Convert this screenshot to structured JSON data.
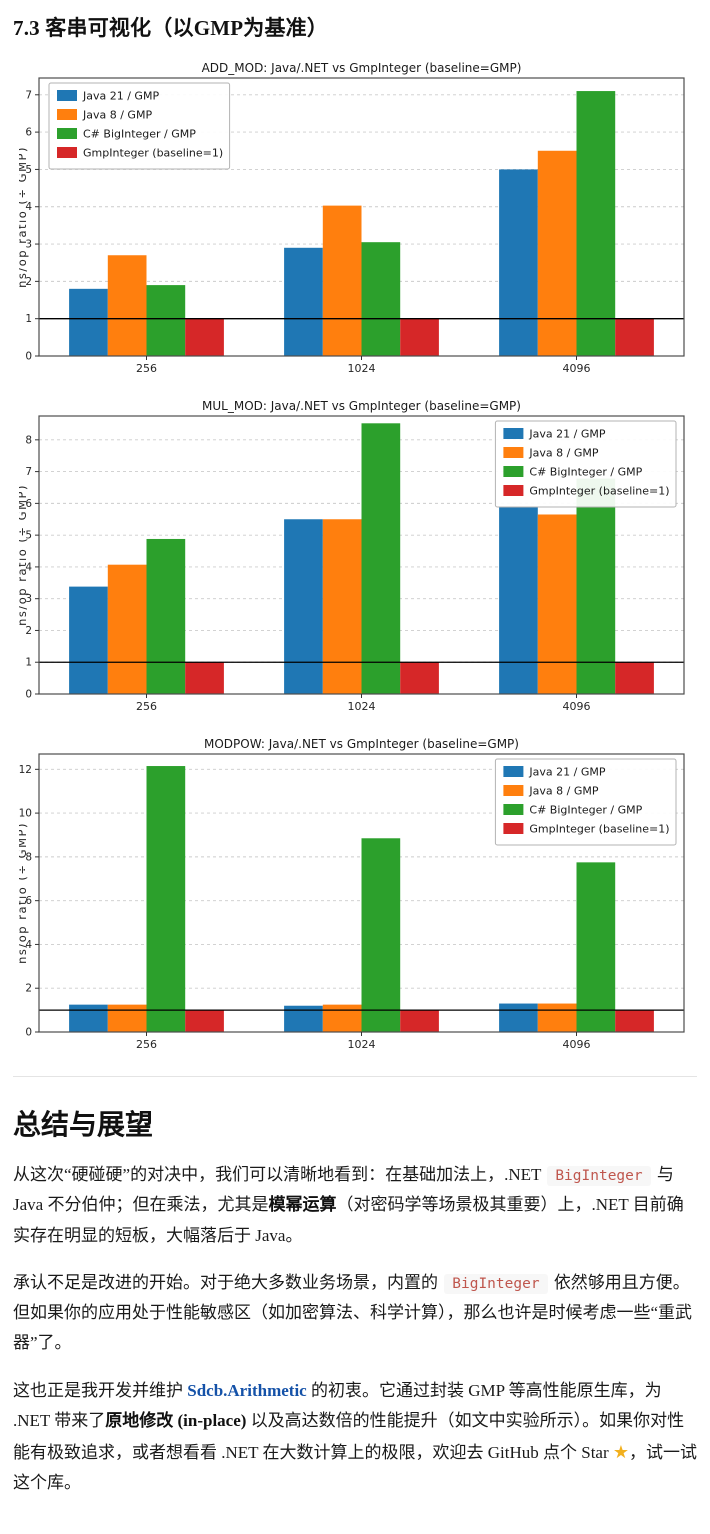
{
  "page": {
    "section_heading": "7.3 客串可视化（以GMP为基准）"
  },
  "chart_data": [
    {
      "type": "bar",
      "title": "ADD_MOD: Java/.NET vs GmpInteger (baseline=GMP)",
      "ylabel": "ns/op ratio (÷ GMP)",
      "xlabel": "",
      "categories": [
        "256",
        "1024",
        "4096"
      ],
      "series": [
        {
          "name": "Java 21 / GMP",
          "color": "#1f77b4",
          "values": [
            1.8,
            2.9,
            5.0
          ]
        },
        {
          "name": "Java 8 / GMP",
          "color": "#ff7f0e",
          "values": [
            2.7,
            4.03,
            5.5
          ]
        },
        {
          "name": "C# BigInteger / GMP",
          "color": "#2ca02c",
          "values": [
            1.9,
            3.05,
            7.1
          ]
        },
        {
          "name": "GmpInteger (baseline=1)",
          "color": "#d62728",
          "values": [
            1.0,
            1.0,
            1.0
          ]
        }
      ],
      "yticks": [
        0,
        1,
        2,
        3,
        4,
        5,
        6,
        7
      ],
      "ymax": 7.45,
      "baseline": 1,
      "grid": "dashed-horizontal",
      "legend_position": "upper-left"
    },
    {
      "type": "bar",
      "title": "MUL_MOD: Java/.NET vs GmpInteger (baseline=GMP)",
      "ylabel": "ns/op ratio (÷ GMP)",
      "xlabel": "",
      "categories": [
        "256",
        "1024",
        "4096"
      ],
      "series": [
        {
          "name": "Java 21 / GMP",
          "color": "#1f77b4",
          "values": [
            3.38,
            5.5,
            5.9
          ]
        },
        {
          "name": "Java 8 / GMP",
          "color": "#ff7f0e",
          "values": [
            4.07,
            5.5,
            5.65
          ]
        },
        {
          "name": "C# BigInteger / GMP",
          "color": "#2ca02c",
          "values": [
            4.88,
            8.52,
            6.78
          ]
        },
        {
          "name": "GmpInteger (baseline=1)",
          "color": "#d62728",
          "values": [
            1.0,
            1.0,
            1.0
          ]
        }
      ],
      "yticks": [
        0,
        1,
        2,
        3,
        4,
        5,
        6,
        7,
        8
      ],
      "ymax": 8.75,
      "baseline": 1,
      "grid": "dashed-horizontal",
      "legend_position": "upper-right"
    },
    {
      "type": "bar",
      "title": "MODPOW: Java/.NET vs GmpInteger (baseline=GMP)",
      "ylabel": "ns/op ratio (÷ GMP)",
      "xlabel": "",
      "categories": [
        "256",
        "1024",
        "4096"
      ],
      "series": [
        {
          "name": "Java 21 / GMP",
          "color": "#1f77b4",
          "values": [
            1.25,
            1.2,
            1.3
          ]
        },
        {
          "name": "Java 8 / GMP",
          "color": "#ff7f0e",
          "values": [
            1.25,
            1.25,
            1.3
          ]
        },
        {
          "name": "C# BigInteger / GMP",
          "color": "#2ca02c",
          "values": [
            12.15,
            8.85,
            7.75
          ]
        },
        {
          "name": "GmpInteger (baseline=1)",
          "color": "#d62728",
          "values": [
            1.0,
            1.0,
            1.0
          ]
        }
      ],
      "yticks": [
        0,
        2,
        4,
        6,
        8,
        10,
        12
      ],
      "ymax": 12.7,
      "baseline": 1,
      "grid": "dashed-horizontal",
      "legend_position": "upper-right"
    }
  ],
  "summary": {
    "heading": "总结与展望",
    "paragraphs": [
      {
        "segments": [
          {
            "style": "normal",
            "text": "从这次“硬碰硬”的对决中，我们可以清晰地看到：在基础加法上，.NET "
          },
          {
            "style": "code",
            "text": "BigInteger"
          },
          {
            "style": "normal",
            "text": " 与 Java 不分伯仲；但在乘法，尤其是"
          },
          {
            "style": "bold",
            "text": "模幂运算"
          },
          {
            "style": "normal",
            "text": "（对密码学等场景极其重要）上，.NET 目前确实存在明显的短板，大幅落后于 Java。"
          }
        ]
      },
      {
        "segments": [
          {
            "style": "normal",
            "text": "承认不足是改进的开始。对于绝大多数业务场景，内置的 "
          },
          {
            "style": "code",
            "text": "BigInteger"
          },
          {
            "style": "normal",
            "text": " 依然够用且方便。但如果你的应用处于性能敏感区（如加密算法、科学计算），那么也许是时候考虑一些“重武器”了。"
          }
        ]
      },
      {
        "segments": [
          {
            "style": "normal",
            "text": "这也正是我开发并维护 "
          },
          {
            "style": "link",
            "text": "Sdcb.Arithmetic"
          },
          {
            "style": "normal",
            "text": " 的初衷。它通过封装 GMP 等高性能原生库，为 .NET 带来了"
          },
          {
            "style": "bold",
            "text": "原地修改 (in-place)"
          },
          {
            "style": "normal",
            "text": " 以及高达数倍的性能提升（如文中实验所示）。如果你对性能有极致追求，或者想看看 .NET 在大数计算上的极限，欢迎去 GitHub 点个 Star "
          },
          {
            "style": "star",
            "text": "★"
          },
          {
            "style": "normal",
            "text": "，试一试这个库。"
          }
        ]
      }
    ]
  }
}
